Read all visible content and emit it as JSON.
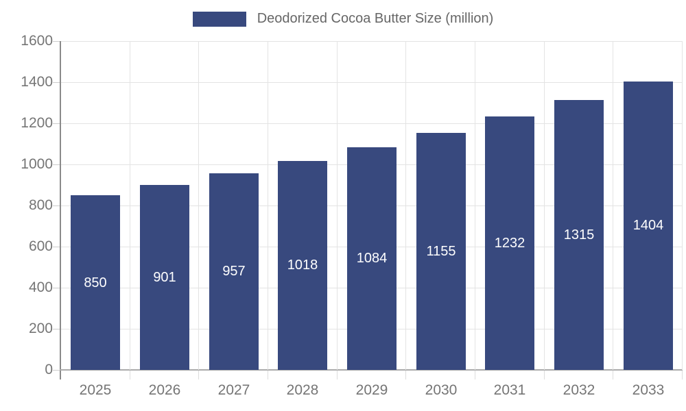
{
  "chart_data": {
    "type": "bar",
    "title": "Deodorized Cocoa Butter Size (million)",
    "legend_entries": [
      "Deodorized Cocoa Butter Size (million)"
    ],
    "legend_position": "top-center",
    "categories": [
      "2025",
      "2026",
      "2027",
      "2028",
      "2029",
      "2030",
      "2031",
      "2032",
      "2033"
    ],
    "series": [
      {
        "name": "Deodorized Cocoa Butter Size (million)",
        "values": [
          850,
          901,
          957,
          1018,
          1084,
          1155,
          1232,
          1315,
          1404
        ]
      }
    ],
    "xlabel": "",
    "ylabel": "",
    "ylim": [
      0,
      1600
    ],
    "ytick_step": 200,
    "grid": true,
    "bar_labels_inside": true
  },
  "colors": {
    "bar": "#38497E",
    "bar_label": "#ffffff",
    "legend_text": "#666666",
    "axis_text": "#757575",
    "gridline": "#e3e3e3",
    "y_axis_line": "#8a8a8a",
    "x_axis_line": "#aaaaaa"
  }
}
